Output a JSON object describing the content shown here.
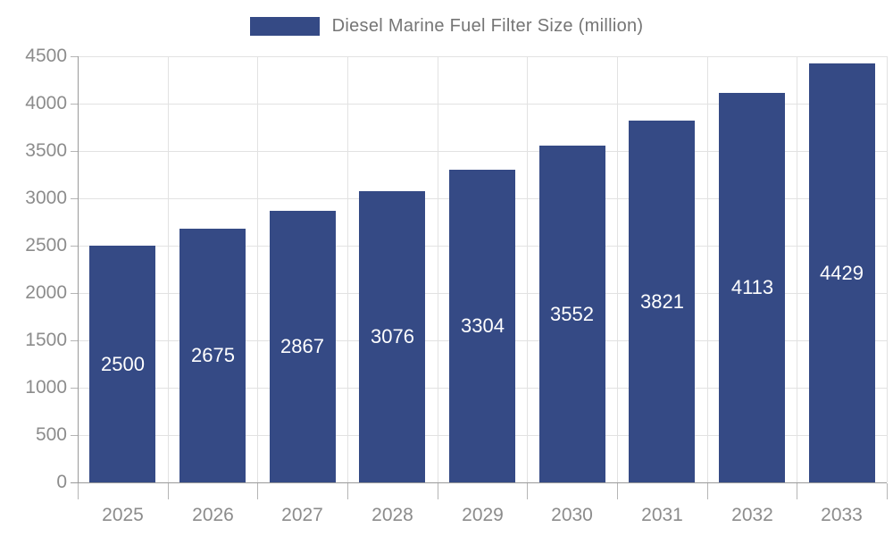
{
  "legend": {
    "label": "Diesel Marine Fuel Filter Size (million)"
  },
  "chart_data": {
    "type": "bar",
    "title": "Diesel Marine Fuel Filter Size (million)",
    "categories": [
      "2025",
      "2026",
      "2027",
      "2028",
      "2029",
      "2030",
      "2031",
      "2032",
      "2033"
    ],
    "values": [
      2500,
      2675,
      2867,
      3076,
      3304,
      3552,
      3821,
      4113,
      4429
    ],
    "xlabel": "",
    "ylabel": "",
    "ylim": [
      0,
      4500
    ],
    "ytick_step": 500,
    "ytick_labels": [
      "0",
      "500",
      "1000",
      "1500",
      "2000",
      "2500",
      "3000",
      "3500",
      "4000",
      "4500"
    ],
    "grid": "on",
    "legend_position": "top-center",
    "value_labels": "inside-center",
    "colors": {
      "bar": "#354a85",
      "value_label": "#ffffff",
      "axis_label": "#8c8c8c",
      "legend_text": "#757575",
      "grid_line": "#e2e2e2",
      "axis_line": "#9a9a9a",
      "tick_line": "#b5b5b5"
    }
  }
}
